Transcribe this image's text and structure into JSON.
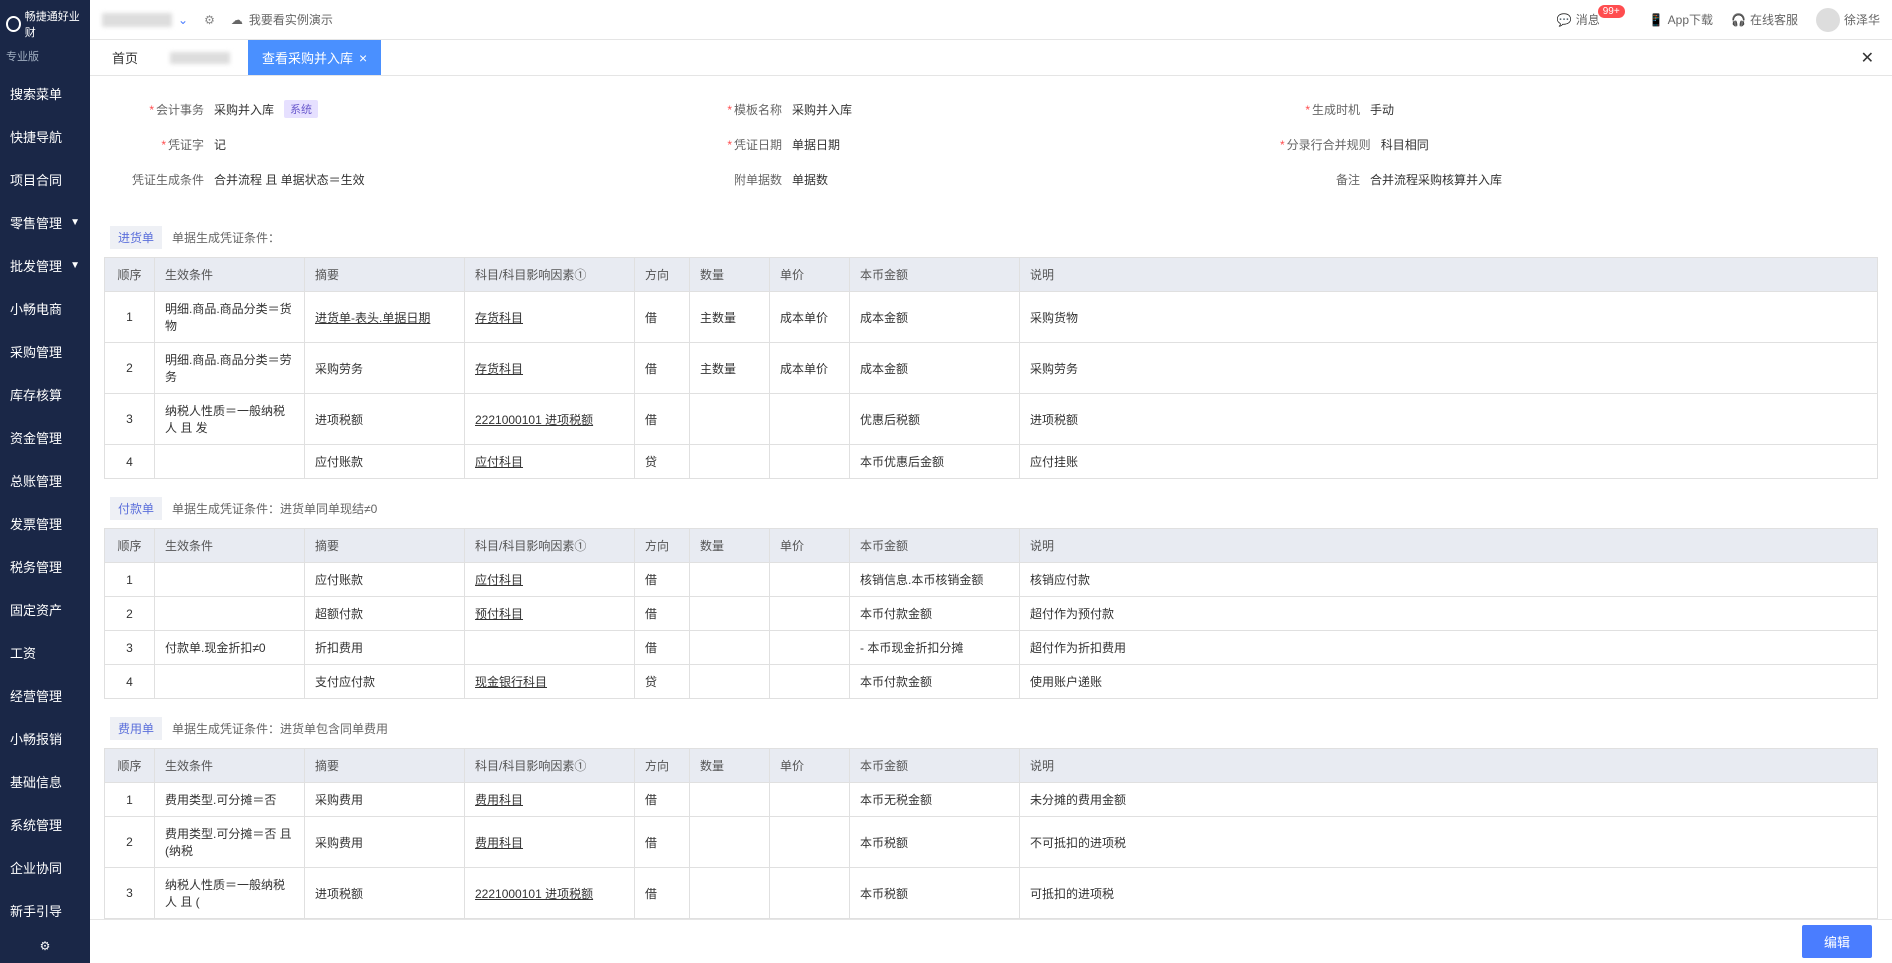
{
  "sidebar": {
    "logo": "畅捷通好业财",
    "edition": "专业版",
    "items": [
      {
        "label": "搜索菜单"
      },
      {
        "label": "快捷导航"
      },
      {
        "label": "项目合同"
      },
      {
        "label": "零售管理",
        "arrow": true
      },
      {
        "label": "批发管理",
        "arrow": true
      },
      {
        "label": "小畅电商"
      },
      {
        "label": "采购管理"
      },
      {
        "label": "库存核算"
      },
      {
        "label": "资金管理"
      },
      {
        "label": "总账管理"
      },
      {
        "label": "发票管理"
      },
      {
        "label": "税务管理"
      },
      {
        "label": "固定资产"
      },
      {
        "label": "工资"
      },
      {
        "label": "经营管理"
      },
      {
        "label": "小畅报销"
      },
      {
        "label": "基础信息"
      },
      {
        "label": "系统管理"
      },
      {
        "label": "企业协同"
      },
      {
        "label": "新手引导"
      }
    ]
  },
  "topbar": {
    "demo": "我要看实例演示",
    "message": "消息",
    "badge": "99+",
    "download": "App下载",
    "service": "在线客服",
    "user": "徐泽华"
  },
  "tabs": {
    "home": "首页",
    "active": "查看采购并入库"
  },
  "info": {
    "l1": "会计事务",
    "v1": "采购并入库",
    "tag": "系统",
    "l2": "模板名称",
    "v2": "采购并入库",
    "l3": "生成时机",
    "v3": "手动",
    "l4": "凭证字",
    "v4": "记",
    "l5": "凭证日期",
    "v5": "单据日期",
    "l6": "分录行合并规则",
    "v6": "科目相同",
    "l7": "凭证生成条件",
    "v7": "合并流程 且 单据状态＝生效",
    "l8": "附单据数",
    "v8": "单据数",
    "l9": "备注",
    "v9": "合并流程采购核算并入库"
  },
  "headers": {
    "order": "顺序",
    "cond": "生效条件",
    "summary": "摘要",
    "subject": "科目/科目影响因素①",
    "dir": "方向",
    "qty": "数量",
    "price": "单价",
    "amount": "本币金额",
    "desc": "说明"
  },
  "sec1": {
    "title": "进货单",
    "cond": "单据生成凭证条件：",
    "rows": [
      {
        "o": "1",
        "c": "明细.商品.商品分类＝货物",
        "s": "进货单-表头.单据日期",
        "sub": "存货科目",
        "d": "借",
        "q": "主数量",
        "p": "成本单价",
        "a": "成本金额",
        "desc": "采购货物"
      },
      {
        "o": "2",
        "c": "明细.商品.商品分类＝劳务",
        "s": "采购劳务",
        "sub": "存货科目",
        "d": "借",
        "q": "主数量",
        "p": "成本单价",
        "a": "成本金额",
        "desc": "采购劳务"
      },
      {
        "o": "3",
        "c": "纳税人性质＝一般纳税人 且 发",
        "s": "进项税额",
        "sub": "2221000101 进项税额",
        "d": "借",
        "q": "",
        "p": "",
        "a": "优惠后税额",
        "desc": "进项税额"
      },
      {
        "o": "4",
        "c": "",
        "s": "应付账款",
        "sub": "应付科目",
        "d": "贷",
        "q": "",
        "p": "",
        "a": "本币优惠后金额",
        "desc": "应付挂账"
      }
    ]
  },
  "sec2": {
    "title": "付款单",
    "cond": "单据生成凭证条件：进货单同单现结≠0",
    "rows": [
      {
        "o": "1",
        "c": "",
        "s": "应付账款",
        "sub": "应付科目",
        "d": "借",
        "q": "",
        "p": "",
        "a": "核销信息.本币核销金额",
        "desc": "核销应付款"
      },
      {
        "o": "2",
        "c": "",
        "s": "超额付款",
        "sub": "预付科目",
        "d": "借",
        "q": "",
        "p": "",
        "a": "本币付款金额",
        "desc": "超付作为预付款"
      },
      {
        "o": "3",
        "c": "付款单.现金折扣≠0",
        "s": "折扣费用",
        "sub": "",
        "d": "借",
        "q": "",
        "p": "",
        "a": "- 本币现金折扣分摊",
        "desc": "超付作为折扣费用"
      },
      {
        "o": "4",
        "c": "",
        "s": "支付应付款",
        "sub": "现金银行科目",
        "d": "贷",
        "q": "",
        "p": "",
        "a": "本币付款金额",
        "desc": "使用账户递账"
      }
    ]
  },
  "sec3": {
    "title": "费用单",
    "cond": "单据生成凭证条件：进货单包含同单费用",
    "rows": [
      {
        "o": "1",
        "c": "费用类型.可分摊＝否",
        "s": "采购费用",
        "sub": "费用科目",
        "d": "借",
        "q": "",
        "p": "",
        "a": "本币无税金额",
        "desc": "未分摊的费用金额"
      },
      {
        "o": "2",
        "c": "费用类型.可分摊＝否 且 (纳税",
        "s": "采购费用",
        "sub": "费用科目",
        "d": "借",
        "q": "",
        "p": "",
        "a": "本币税额",
        "desc": "不可抵扣的进项税"
      },
      {
        "o": "3",
        "c": "纳税人性质＝一般纳税人 且 (",
        "s": "进项税额",
        "sub": "2221000101 进项税额",
        "d": "借",
        "q": "",
        "p": "",
        "a": "本币税额",
        "desc": "可抵扣的进项税"
      }
    ]
  },
  "footer": {
    "edit": "编辑"
  }
}
